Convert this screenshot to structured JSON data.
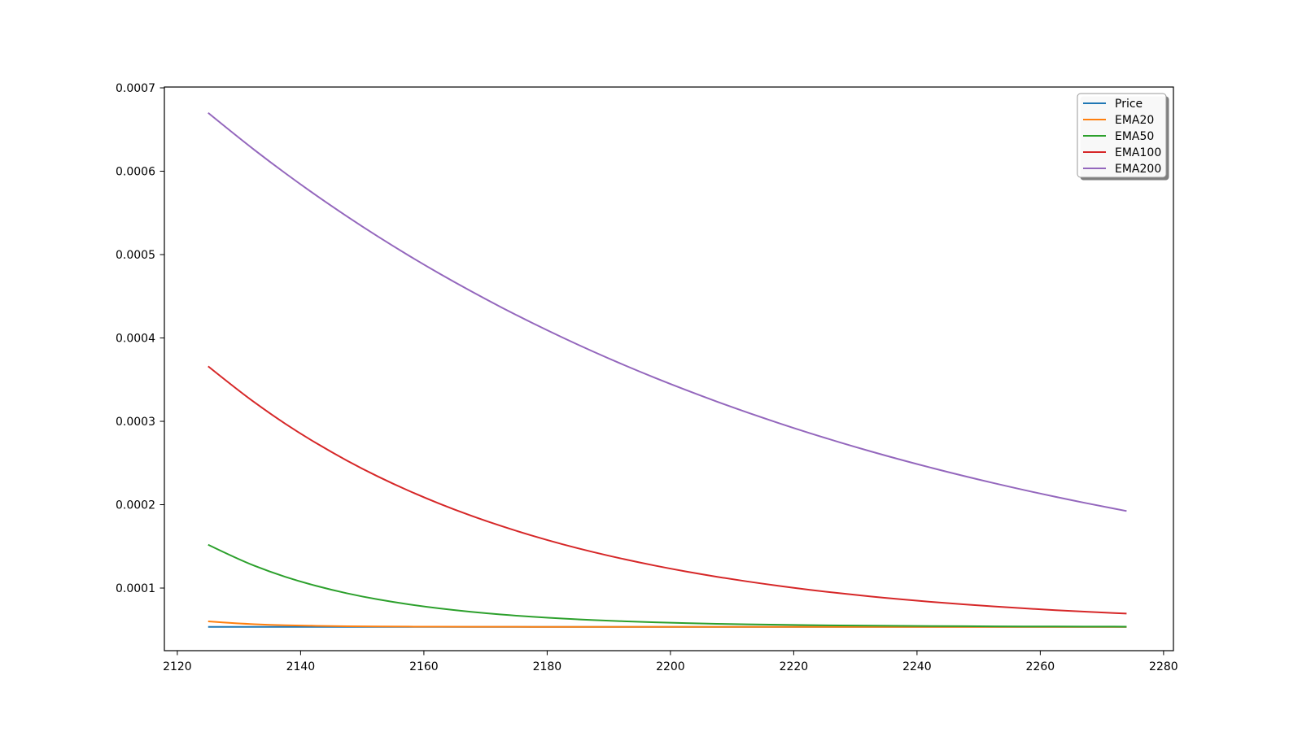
{
  "figure": {
    "background_color": "#ffffff",
    "spine_color": "#000000",
    "tick_color": "#000000",
    "label_color": "#000000"
  },
  "chart_data": {
    "type": "line",
    "title": "",
    "xlabel": "",
    "ylabel": "",
    "grid": false,
    "xlim": [
      2117.9,
      2281.6
    ],
    "ylim": [
      2.49e-05,
      0.000701
    ],
    "x_ticks": [
      2120,
      2140,
      2160,
      2180,
      2200,
      2220,
      2240,
      2260,
      2280
    ],
    "x_tick_labels": [
      "2120",
      "2140",
      "2160",
      "2180",
      "2200",
      "2220",
      "2240",
      "2260",
      "2280"
    ],
    "y_ticks": [
      0.0001,
      0.0002,
      0.0003,
      0.0004,
      0.0005,
      0.0006,
      0.0007
    ],
    "y_tick_labels": [
      "0.0001",
      "0.0002",
      "0.0003",
      "0.0004",
      "0.0005",
      "0.0006",
      "0.0007"
    ],
    "legend": {
      "position": "upper right",
      "frame_fill": "#ffffff",
      "frame_edge": "#9a9a9a",
      "shadow_color": "#7f7f7f",
      "entries": [
        "Price",
        "EMA20",
        "EMA50",
        "EMA100",
        "EMA200"
      ]
    },
    "x": [
      2125,
      2130,
      2135,
      2140,
      2145,
      2150,
      2155,
      2160,
      2165,
      2170,
      2175,
      2180,
      2185,
      2190,
      2195,
      2200,
      2205,
      2210,
      2215,
      2220,
      2225,
      2230,
      2235,
      2240,
      2245,
      2250,
      2255,
      2260,
      2265,
      2270,
      2274
    ],
    "series": [
      {
        "name": "Price",
        "color": "#1f77b4",
        "values": [
          5.35e-05,
          5.35e-05,
          5.35e-05,
          5.35e-05,
          5.35e-05,
          5.35e-05,
          5.35e-05,
          5.35e-05,
          5.35e-05,
          5.35e-05,
          5.35e-05,
          5.35e-05,
          5.35e-05,
          5.35e-05,
          5.35e-05,
          5.35e-05,
          5.35e-05,
          5.35e-05,
          5.35e-05,
          5.35e-05,
          5.35e-05,
          5.35e-05,
          5.35e-05,
          5.35e-05,
          5.35e-05,
          5.35e-05,
          5.35e-05,
          5.35e-05,
          5.35e-05,
          5.35e-05,
          5.35e-05
        ]
      },
      {
        "name": "EMA20",
        "color": "#ff7f0e",
        "values": [
          6e-05,
          5.74e-05,
          5.59e-05,
          5.5e-05,
          5.44e-05,
          5.4e-05,
          5.38e-05,
          5.37e-05,
          5.36e-05,
          5.36e-05,
          5.35e-05,
          5.35e-05,
          5.35e-05,
          5.35e-05,
          5.35e-05,
          5.35e-05,
          5.35e-05,
          5.35e-05,
          5.35e-05,
          5.35e-05,
          5.35e-05,
          5.35e-05,
          5.35e-05,
          5.35e-05,
          5.35e-05,
          5.35e-05,
          5.35e-05,
          5.35e-05,
          5.35e-05,
          5.35e-05,
          5.35e-05
        ]
      },
      {
        "name": "EMA50",
        "color": "#2ca02c",
        "values": [
          0.000152,
          0.0001341,
          0.0001195,
          0.0001076,
          9.78e-05,
          8.97e-05,
          8.32e-05,
          7.78e-05,
          7.34e-05,
          6.98e-05,
          6.68e-05,
          6.44e-05,
          6.24e-05,
          6.08e-05,
          5.95e-05,
          5.84e-05,
          5.75e-05,
          5.68e-05,
          5.62e-05,
          5.57e-05,
          5.53e-05,
          5.5e-05,
          5.47e-05,
          5.45e-05,
          5.43e-05,
          5.42e-05,
          5.4e-05,
          5.39e-05,
          5.39e-05,
          5.38e-05,
          5.37e-05
        ]
      },
      {
        "name": "EMA100",
        "color": "#d62728",
        "values": [
          0.000366,
          0.0003363,
          0.0003094,
          0.000285,
          0.000263,
          0.000243,
          0.000225,
          0.0002087,
          0.0001939,
          0.0001806,
          0.0001685,
          0.0001575,
          0.0001476,
          0.0001387,
          0.0001306,
          0.0001232,
          0.0001166,
          0.0001106,
          0.0001052,
          0.0001002,
          9.58e-05,
          9.18e-05,
          8.81e-05,
          8.48e-05,
          8.19e-05,
          7.92e-05,
          7.67e-05,
          7.45e-05,
          7.25e-05,
          7.07e-05,
          6.94e-05
        ]
      },
      {
        "name": "EMA200",
        "color": "#9467bd",
        "values": [
          0.00067,
          0.0006399,
          0.0006113,
          0.0005841,
          0.0005583,
          0.0005336,
          0.0005102,
          0.0004879,
          0.0004668,
          0.0004466,
          0.0004274,
          0.0004092,
          0.0003918,
          0.0003753,
          0.0003596,
          0.0003447,
          0.0003305,
          0.000317,
          0.0003042,
          0.0002919,
          0.0002803,
          0.0002692,
          0.0002587,
          0.0002487,
          0.0002392,
          0.0002301,
          0.0002215,
          0.0002133,
          0.0002055,
          0.0001981,
          0.0001924
        ]
      }
    ]
  }
}
